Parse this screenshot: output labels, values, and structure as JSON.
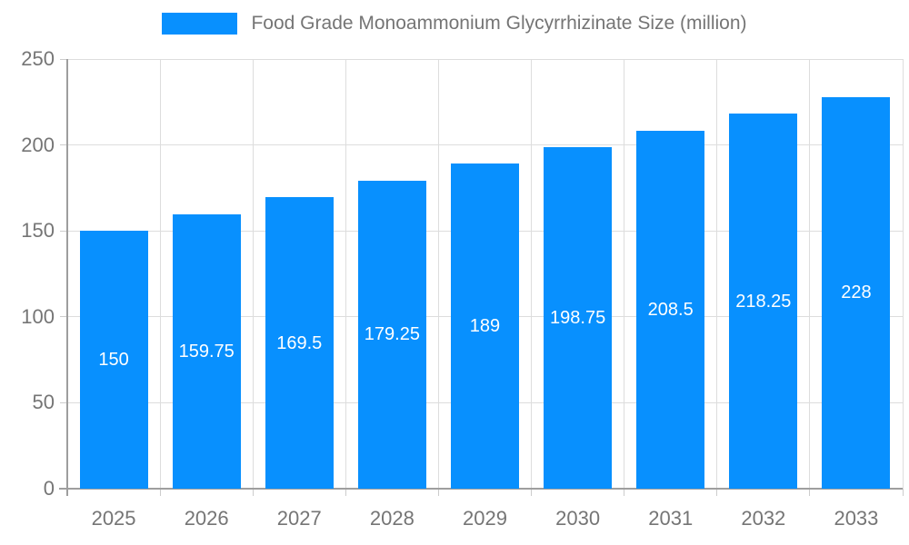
{
  "legend": {
    "label": "Food Grade Monoammonium Glycyrrhizinate Size (million)"
  },
  "colors": {
    "bar": "#0890FE",
    "axis": "#9E9E9E",
    "grid": "#DDDDDD",
    "tick": "#CCCCCC",
    "axis_label": "#757575",
    "value_label": "#FFFFFF",
    "background": "#FFFFFF"
  },
  "chart_data": {
    "type": "bar",
    "title": "Food Grade Monoammonium Glycyrrhizinate Size (million)",
    "series_name": "Food Grade Monoammonium Glycyrrhizinate Size (million)",
    "categories": [
      "2025",
      "2026",
      "2027",
      "2028",
      "2029",
      "2030",
      "2031",
      "2032",
      "2033"
    ],
    "values": [
      150,
      159.75,
      169.5,
      179.25,
      189,
      198.75,
      208.5,
      218.25,
      228
    ],
    "value_labels": [
      "150",
      "159.75",
      "169.5",
      "179.25",
      "189",
      "198.75",
      "208.5",
      "218.25",
      "228"
    ],
    "xlabel": "",
    "ylabel": "",
    "ylim": [
      0,
      250
    ],
    "y_ticks": [
      0,
      50,
      100,
      150,
      200,
      250
    ],
    "y_tick_labels": [
      "0",
      "50",
      "100",
      "150",
      "200",
      "250"
    ],
    "grid": true,
    "legend_position": "top",
    "value_label_position": "inside-center"
  }
}
